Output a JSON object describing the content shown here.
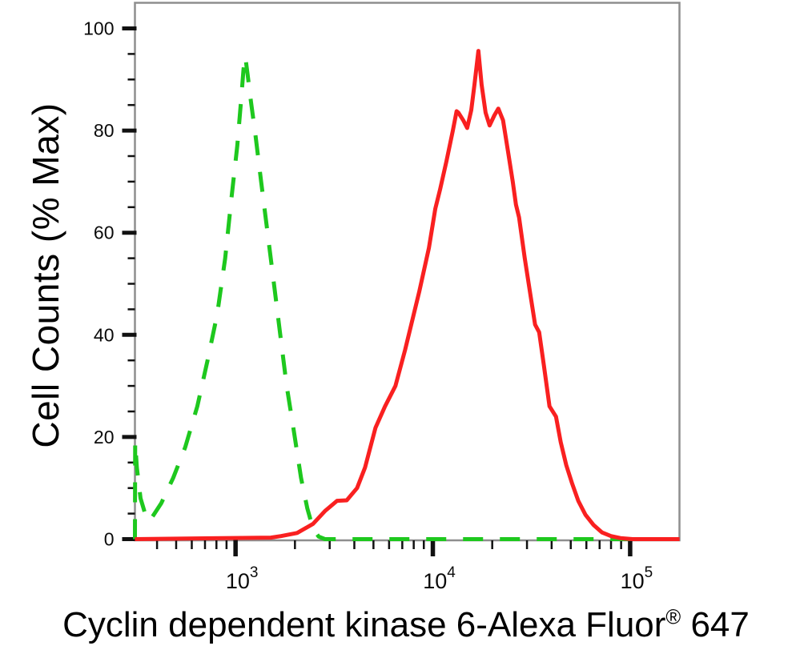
{
  "figure": {
    "y_axis_title": "Cell Counts (% Max)",
    "x_axis_title_main": "Cyclin dependent kinase 6-Alexa Fluor",
    "x_axis_title_sup": "®",
    "x_axis_title_suffix": " 647"
  },
  "chart_data": {
    "type": "line",
    "subtype": "flow-cytometry-histogram-overlay",
    "title": "",
    "xlabel": "Cyclin dependent kinase 6-Alexa Fluor® 647",
    "ylabel": "Cell Counts (% Max)",
    "x_scale": "log10",
    "x_range_log10": [
      2.49,
      5.25
    ],
    "ylim": [
      0,
      105
    ],
    "grid": "off",
    "legend": "none",
    "y_major_ticks": [
      0,
      20,
      40,
      60,
      80,
      100
    ],
    "y_minor_ticks": [
      5,
      10,
      15,
      25,
      30,
      35,
      45,
      50,
      55,
      65,
      70,
      75,
      85,
      90,
      95
    ],
    "x_major_ticks": [
      {
        "base": "10",
        "exp": "3",
        "value": 1000
      },
      {
        "base": "10",
        "exp": "4",
        "value": 10000
      },
      {
        "base": "10",
        "exp": "5",
        "value": 100000
      }
    ],
    "x_minor_ticks": [
      400,
      500,
      600,
      700,
      800,
      900,
      2000,
      3000,
      4000,
      5000,
      6000,
      7000,
      8000,
      9000,
      20000,
      30000,
      40000,
      50000,
      60000,
      70000,
      80000,
      90000
    ],
    "colors": {
      "frame": "#8e8e8e",
      "tick": "#111111",
      "text": "#0a0a0a",
      "green_dashed": "#1ec81e",
      "red_solid": "#f92020"
    },
    "series": [
      {
        "name": "green-dashed",
        "style": "dashed",
        "color": "#1ec81e",
        "points": [
          [
            309,
            0
          ],
          [
            310,
            19
          ],
          [
            316,
            14
          ],
          [
            330,
            8
          ],
          [
            348,
            5
          ],
          [
            366,
            3.5
          ],
          [
            420,
            7
          ],
          [
            483,
            12
          ],
          [
            556,
            18
          ],
          [
            640,
            26
          ],
          [
            721,
            35
          ],
          [
            807,
            44
          ],
          [
            886,
            55
          ],
          [
            955,
            67
          ],
          [
            1020,
            77
          ],
          [
            1067,
            86
          ],
          [
            1097,
            92
          ],
          [
            1120,
            94.5
          ],
          [
            1151,
            91
          ],
          [
            1194,
            86
          ],
          [
            1262,
            79
          ],
          [
            1348,
            70
          ],
          [
            1452,
            60
          ],
          [
            1565,
            50
          ],
          [
            1686,
            40
          ],
          [
            1816,
            30
          ],
          [
            1977,
            21
          ],
          [
            2147,
            12
          ],
          [
            2312,
            6
          ],
          [
            2472,
            2
          ],
          [
            2636,
            0.5
          ],
          [
            2840,
            0
          ],
          [
            178000,
            0
          ]
        ]
      },
      {
        "name": "red-solid",
        "style": "solid",
        "color": "#f92020",
        "points": [
          [
            309,
            0
          ],
          [
            1510,
            0.3
          ],
          [
            1700,
            0.6
          ],
          [
            2050,
            1.2
          ],
          [
            2470,
            3
          ],
          [
            2840,
            5.5
          ],
          [
            3270,
            7.5
          ],
          [
            3660,
            7.6
          ],
          [
            4130,
            10
          ],
          [
            4530,
            14
          ],
          [
            5120,
            21.8
          ],
          [
            5720,
            26
          ],
          [
            6460,
            30
          ],
          [
            7230,
            37
          ],
          [
            8540,
            48.5
          ],
          [
            9550,
            57
          ],
          [
            10290,
            64.7
          ],
          [
            10880,
            68.5
          ],
          [
            11720,
            74
          ],
          [
            12630,
            80
          ],
          [
            13200,
            83.8
          ],
          [
            13480,
            83.5
          ],
          [
            14260,
            82
          ],
          [
            14930,
            80.5
          ],
          [
            15650,
            84
          ],
          [
            16250,
            89
          ],
          [
            17020,
            95.6
          ],
          [
            17670,
            89
          ],
          [
            18500,
            83.5
          ],
          [
            19400,
            81
          ],
          [
            20510,
            83
          ],
          [
            21480,
            84.3
          ],
          [
            22700,
            82
          ],
          [
            24030,
            76
          ],
          [
            25410,
            70
          ],
          [
            26380,
            65.5
          ],
          [
            27350,
            63
          ],
          [
            29240,
            55
          ],
          [
            31190,
            48
          ],
          [
            32970,
            42
          ],
          [
            34580,
            40.5
          ],
          [
            36560,
            34
          ],
          [
            39000,
            26
          ],
          [
            42070,
            24
          ],
          [
            44460,
            19
          ],
          [
            47430,
            14.5
          ],
          [
            50700,
            11
          ],
          [
            54570,
            7.5
          ],
          [
            59290,
            4.8
          ],
          [
            65130,
            2.8
          ],
          [
            72110,
            1.3
          ],
          [
            79980,
            0.6
          ],
          [
            89330,
            0.2
          ],
          [
            102800,
            0
          ],
          [
            178000,
            0
          ]
        ]
      }
    ]
  }
}
